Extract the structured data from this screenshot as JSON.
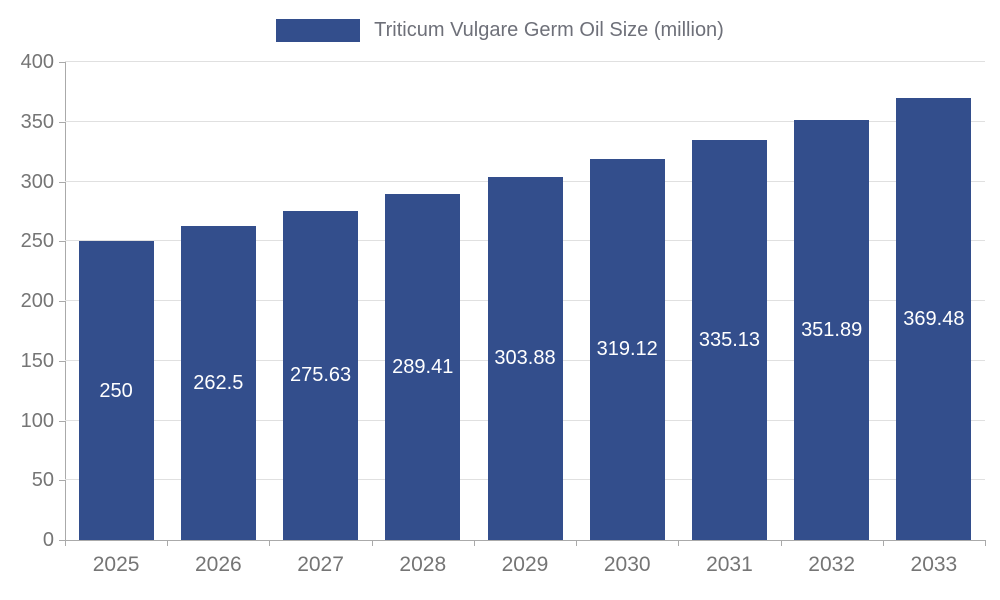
{
  "chart_data": {
    "type": "bar",
    "title": "Triticum Vulgare Germ Oil Size (million)",
    "legend": {
      "label": "Triticum Vulgare Germ Oil Size (million)",
      "position": "top"
    },
    "categories": [
      "2025",
      "2026",
      "2027",
      "2028",
      "2029",
      "2030",
      "2031",
      "2032",
      "2033"
    ],
    "values": [
      250,
      262.5,
      275.63,
      289.41,
      303.88,
      319.12,
      335.13,
      351.89,
      369.48
    ],
    "value_labels": [
      "250",
      "262.5",
      "275.63",
      "289.41",
      "303.88",
      "319.12",
      "335.13",
      "351.89",
      "369.48"
    ],
    "xlabel": "",
    "ylabel": "",
    "ylim": [
      0,
      400
    ],
    "yticks": [
      0,
      50,
      100,
      150,
      200,
      250,
      300,
      350,
      400
    ],
    "grid": true,
    "colors": {
      "bar": "#334e8c",
      "value_label_text": "#ffffff",
      "axis": "#aaaaaa",
      "grid_line": "#e0e0e0",
      "tick_text": "#757575",
      "legend_text": "#6e7079"
    }
  }
}
